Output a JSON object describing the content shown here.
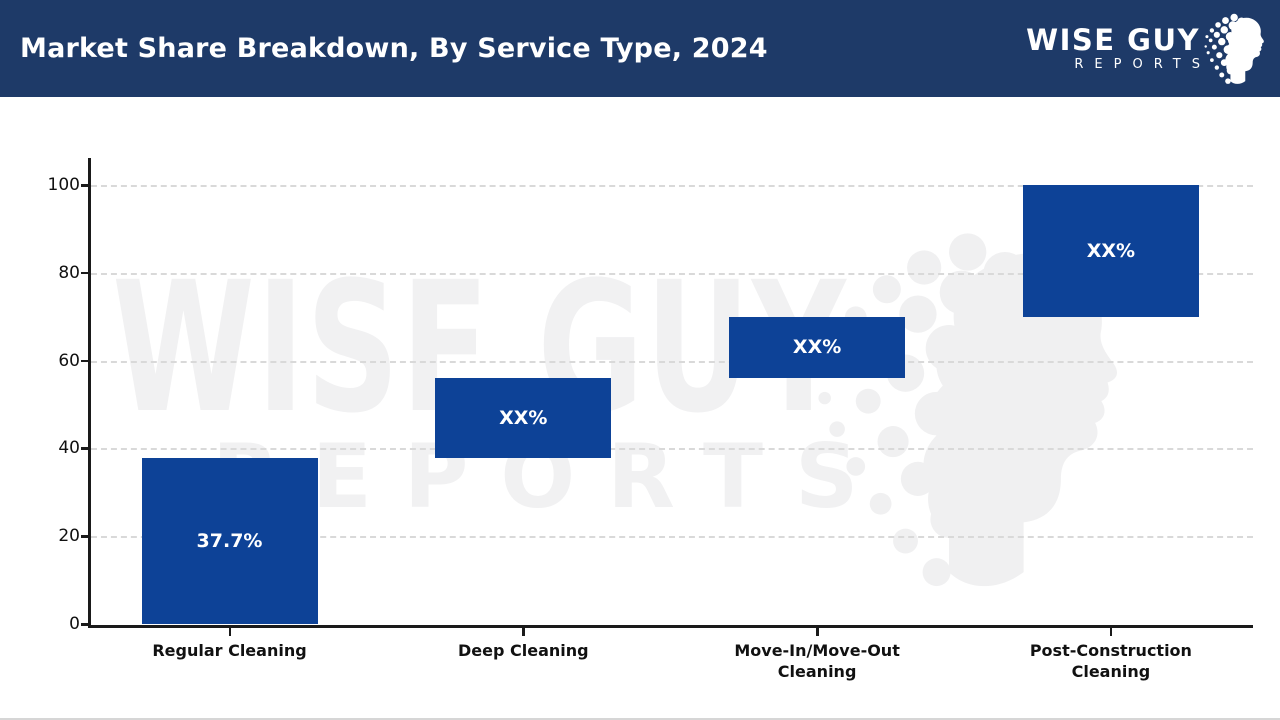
{
  "header": {
    "title": "Market Share Breakdown, By Service Type, 2024",
    "logo": {
      "wordmark": "WISE GUY",
      "subtitle": "REPORTS"
    }
  },
  "watermark": {
    "wordmark": "WISE GUY",
    "subtitle": "REPORTS"
  },
  "chart_data": {
    "type": "bar",
    "subtype": "floating-segment-waterfall",
    "title": "Market Share Breakdown, By Service Type, 2024",
    "xlabel": "",
    "ylabel": "",
    "ylim": [
      0,
      100
    ],
    "yticks": [
      0,
      20,
      40,
      60,
      80,
      100
    ],
    "grid": "horizontal-dashed",
    "legend": "none",
    "bar_color": "#0d4297",
    "bar_label_color": "#ffffff",
    "categories": [
      "Regular Cleaning",
      "Deep Cleaning",
      "Move-In/Move-Out Cleaning",
      "Post-Construction Cleaning"
    ],
    "categories_display": [
      "Regular Cleaning",
      "Deep Cleaning",
      "Move-In/Move-Out\nCleaning",
      "Post-Construction\nCleaning"
    ],
    "segments": [
      {
        "category": "Regular Cleaning",
        "start": 0,
        "end": 37.7,
        "label": "37.7%"
      },
      {
        "category": "Deep Cleaning",
        "start": 37.7,
        "end": 56,
        "label": "XX%"
      },
      {
        "category": "Move-In/Move-Out Cleaning",
        "start": 56,
        "end": 70,
        "label": "XX%"
      },
      {
        "category": "Post-Construction Cleaning",
        "start": 70,
        "end": 100,
        "label": "XX%"
      }
    ]
  },
  "colors": {
    "header_bg": "#1e3a68",
    "axis": "#1a1a1a",
    "grid": "#d9d9d9",
    "tick_label": "#111111",
    "watermark": "#f1f1f2",
    "bottom_line": "#d6d6d6"
  }
}
